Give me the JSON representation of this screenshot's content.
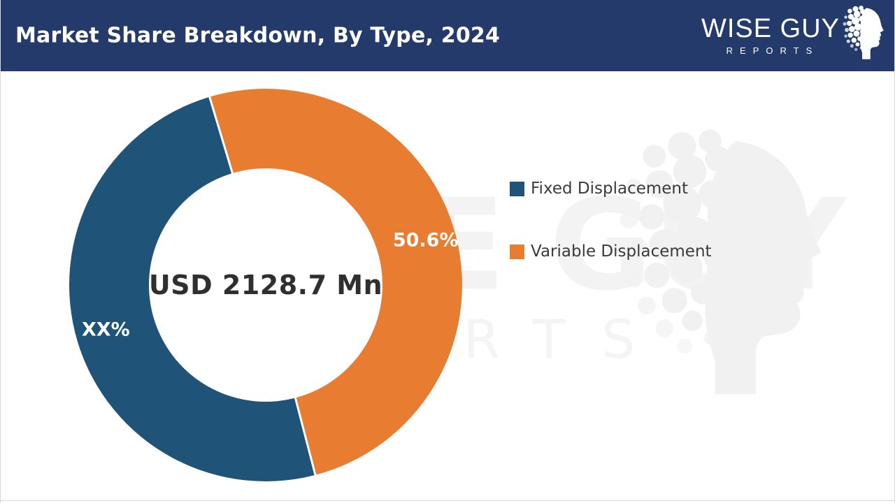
{
  "header": {
    "title": "Market Share Breakdown, By Type, 2024",
    "logo": {
      "name": "WISE GUY",
      "sub": "REPORTS"
    }
  },
  "watermark": {
    "line1": "WISE GUY",
    "line2": "REPORTS"
  },
  "chart_data": {
    "type": "pie",
    "subtype": "donut",
    "title": "Market Share Breakdown, By Type, 2024",
    "center_label": "USD 2128.7 Mn",
    "donut_hole_ratio": 0.59,
    "start_angle_deg": -16.7,
    "direction": "clockwise",
    "legend_position": "right",
    "segments": [
      {
        "label": "Variable Displacement",
        "value_pct": 50.6,
        "display_label": "50.6%",
        "color": "#e87d31"
      },
      {
        "label": "Fixed Displacement",
        "value_pct": 49.4,
        "display_label": "XX%",
        "color": "#1f5478"
      }
    ]
  },
  "legend": {
    "items": [
      {
        "label": "Fixed Displacement",
        "color": "#1f5478"
      },
      {
        "label": "Variable Displacement",
        "color": "#e87d31"
      }
    ]
  },
  "colors": {
    "header_bg": "#233a6b",
    "blue": "#1f5478",
    "orange": "#e87d31",
    "center_text": "#2f2f2f",
    "divider": "#ffffff"
  }
}
